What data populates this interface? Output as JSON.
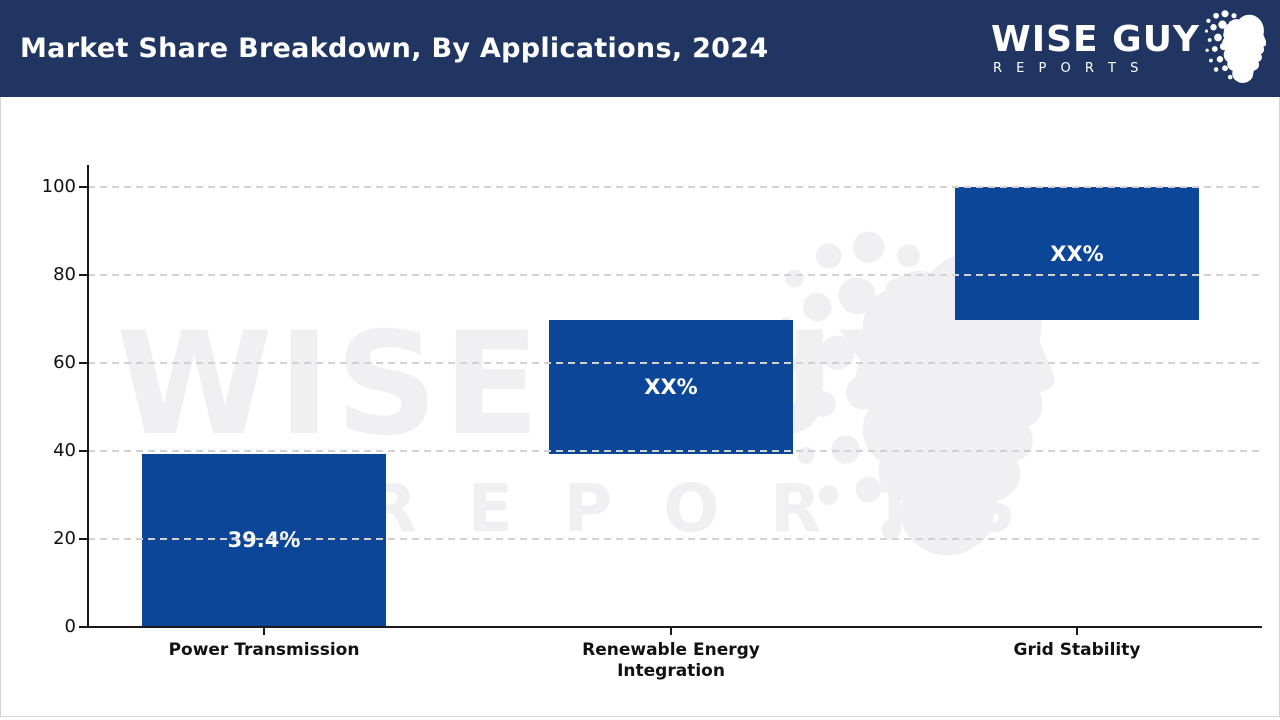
{
  "header": {
    "title": "Market Share Breakdown, By Applications, 2024",
    "logo": {
      "line1": "WISE GUY",
      "line2": "R E P O R T S"
    }
  },
  "watermark": {
    "line1": "WISE GUY",
    "line2": "R E P O R T S"
  },
  "colors": {
    "header_bg": "#203561",
    "bar_fill": "#0c4699",
    "gridline": "#d2d2d2",
    "axis": "#1a1a1a",
    "bar_label_text": "#ffffff",
    "watermark": "#f0f0f3"
  },
  "chart_data": {
    "type": "bar",
    "subtype": "floating-waterfall-segments",
    "title": "Market Share Breakdown, By Applications, 2024",
    "categories": [
      "Power Transmission",
      "Renewable Energy Integration",
      "Grid Stability"
    ],
    "category_label_lines": [
      [
        "Power Transmission"
      ],
      [
        "Renewable Energy",
        "Integration"
      ],
      [
        "Grid Stability"
      ]
    ],
    "bars": [
      {
        "category": "Power Transmission",
        "base": 0,
        "top": 39.4,
        "value": 39.4,
        "label": "39.4%"
      },
      {
        "category": "Renewable Energy Integration",
        "base": 39.4,
        "top": 69.7,
        "value": 30.3,
        "label": "XX%"
      },
      {
        "category": "Grid Stability",
        "base": 69.7,
        "top": 100,
        "value": 30.3,
        "label": "XX%"
      }
    ],
    "yticks": [
      0,
      20,
      40,
      60,
      80,
      100
    ],
    "ylim": [
      0,
      100
    ],
    "xlabel": "",
    "ylabel": "",
    "grid": "horizontal-dashed",
    "legend": "none"
  }
}
